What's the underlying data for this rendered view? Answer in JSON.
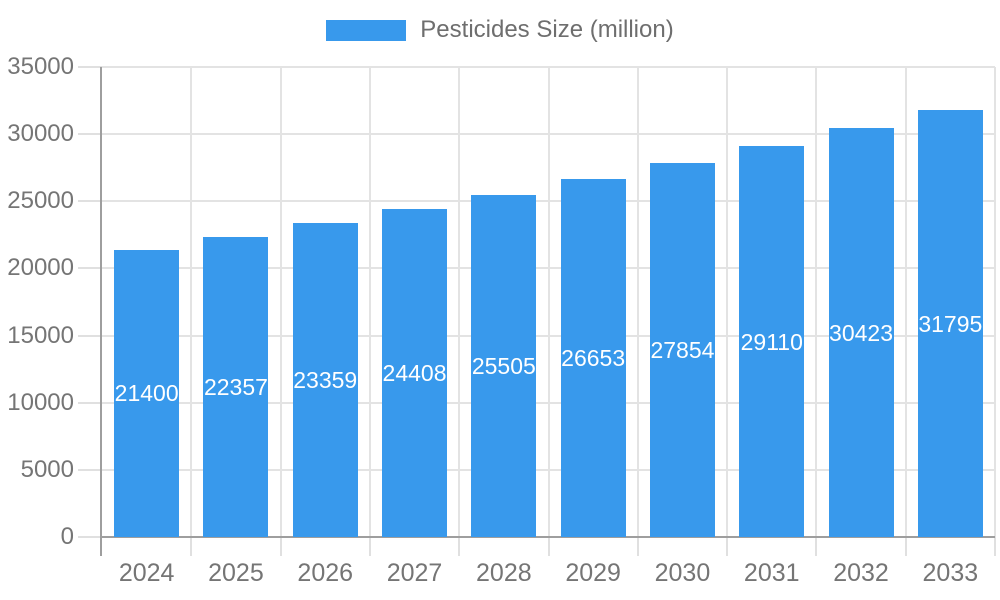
{
  "chart_data": {
    "type": "bar",
    "title": "",
    "categories": [
      "2024",
      "2025",
      "2026",
      "2027",
      "2028",
      "2029",
      "2030",
      "2031",
      "2032",
      "2033"
    ],
    "series": [
      {
        "name": "Pesticides Size (million)",
        "values": [
          21400,
          22357,
          23359,
          24408,
          25505,
          26653,
          27854,
          29110,
          30423,
          31795
        ]
      }
    ],
    "value_labels": [
      "21400",
      "22357",
      "23359",
      "24408",
      "25505",
      "26653",
      "27854",
      "29110",
      "30423",
      "31795"
    ],
    "legend": {
      "position": "top",
      "label": "Pesticides Size (million)"
    },
    "xlabel": "",
    "ylabel": "",
    "ylim": [
      0,
      35000
    ],
    "yticks": [
      0,
      5000,
      10000,
      15000,
      20000,
      25000,
      30000,
      35000
    ],
    "grid": true,
    "colors": {
      "bar": "#3899EC",
      "value_label": "#FFFFFF",
      "axis_label": "#757575",
      "legend_label": "#6E6E6E",
      "gridline": "#E3E3E3",
      "tick": "#E0E0E0",
      "axis_line": "#9E9E9E",
      "background": "#FFFFFF"
    }
  }
}
